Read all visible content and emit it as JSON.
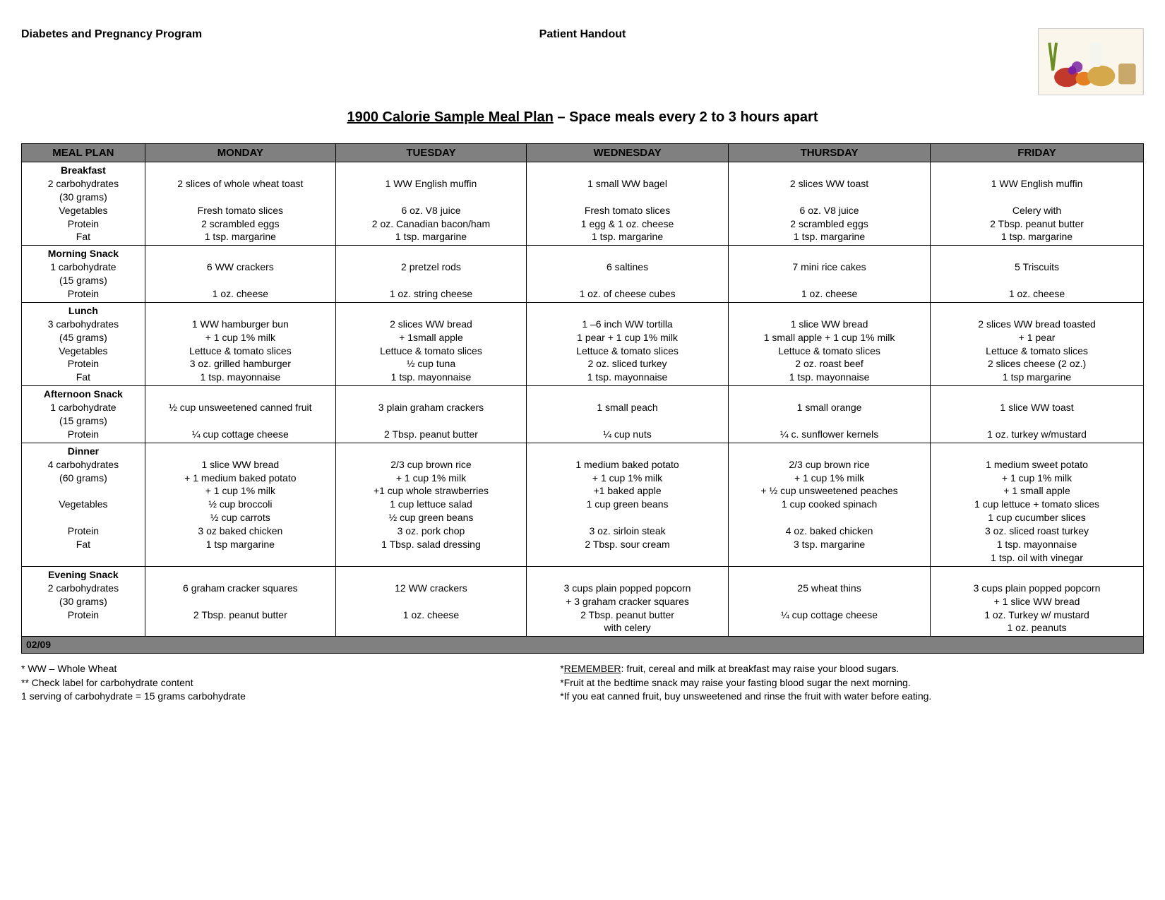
{
  "header": {
    "program": "Diabetes and Pregnancy Program",
    "doc_type": "Patient Handout"
  },
  "title": {
    "underlined": "1900 Calorie Sample Meal Plan",
    "rest": " – Space meals every 2 to 3 hours apart"
  },
  "columns": [
    "MEAL PLAN",
    "MONDAY",
    "TUESDAY",
    "WEDNESDAY",
    "THURSDAY",
    "FRIDAY"
  ],
  "meals": [
    {
      "name": "Breakfast",
      "labels": [
        "2 carbohydrates",
        "(30 grams)",
        "Vegetables",
        "Protein",
        "Fat"
      ],
      "days": [
        [
          "2 slices of whole wheat toast",
          "",
          "Fresh tomato slices",
          "2 scrambled eggs",
          "1 tsp. margarine"
        ],
        [
          "1 WW English muffin",
          "",
          "6 oz. V8 juice",
          "2 oz. Canadian bacon/ham",
          "1 tsp. margarine"
        ],
        [
          "1 small WW bagel",
          "",
          "Fresh tomato slices",
          "1 egg & 1 oz. cheese",
          "1 tsp. margarine"
        ],
        [
          "2 slices WW toast",
          "",
          "6 oz. V8 juice",
          "2 scrambled eggs",
          "1 tsp. margarine"
        ],
        [
          "1 WW English muffin",
          "",
          "Celery with",
          "2 Tbsp. peanut butter",
          "1 tsp. margarine"
        ]
      ]
    },
    {
      "name": "Morning Snack",
      "labels": [
        "1 carbohydrate",
        "(15 grams)",
        "Protein"
      ],
      "days": [
        [
          "6 WW crackers",
          "",
          "1 oz. cheese"
        ],
        [
          "2 pretzel rods",
          "",
          "1 oz. string cheese"
        ],
        [
          "6 saltines",
          "",
          "1 oz. of cheese cubes"
        ],
        [
          "7 mini rice cakes",
          "",
          "1 oz. cheese"
        ],
        [
          "5 Triscuits",
          "",
          "1 oz. cheese"
        ]
      ]
    },
    {
      "name": "Lunch",
      "labels": [
        "3 carbohydrates",
        "(45 grams)",
        "Vegetables",
        "Protein",
        "Fat"
      ],
      "days": [
        [
          "1 WW hamburger bun",
          "+ 1 cup 1% milk",
          "Lettuce & tomato slices",
          "3 oz. grilled hamburger",
          "1 tsp. mayonnaise"
        ],
        [
          "2 slices WW bread",
          "+ 1small apple",
          "Lettuce & tomato slices",
          "½ cup tuna",
          "1 tsp. mayonnaise"
        ],
        [
          "1 –6 inch WW tortilla",
          "1 pear + 1 cup 1% milk",
          "Lettuce & tomato slices",
          "2 oz. sliced turkey",
          "1 tsp. mayonnaise"
        ],
        [
          "1 slice WW bread",
          "1 small apple + 1 cup 1% milk",
          "Lettuce & tomato slices",
          "2 oz. roast beef",
          "1 tsp. mayonnaise"
        ],
        [
          "2 slices WW bread toasted",
          "+ 1 pear",
          "Lettuce & tomato slices",
          "2 slices cheese (2 oz.)",
          "1 tsp margarine"
        ]
      ]
    },
    {
      "name": "Afternoon Snack",
      "labels": [
        "1 carbohydrate",
        "(15 grams)",
        "Protein"
      ],
      "days": [
        [
          "½ cup unsweetened canned fruit",
          "",
          "¼ cup cottage cheese"
        ],
        [
          "3 plain graham crackers",
          "",
          "2 Tbsp. peanut butter"
        ],
        [
          "1 small peach",
          "",
          "¼ cup nuts"
        ],
        [
          "1 small orange",
          "",
          "¼ c. sunflower kernels"
        ],
        [
          "1 slice WW toast",
          "",
          "1 oz. turkey w/mustard"
        ]
      ]
    },
    {
      "name": "Dinner",
      "labels": [
        "4 carbohydrates",
        "(60 grams)",
        "",
        "Vegetables",
        "",
        "Protein",
        "Fat",
        ""
      ],
      "days": [
        [
          "1 slice WW bread",
          "+ 1 medium baked potato",
          "+ 1 cup 1% milk",
          "½ cup broccoli",
          "½ cup carrots",
          "3 oz baked chicken",
          "1 tsp margarine",
          ""
        ],
        [
          "2/3 cup brown rice",
          "+ 1 cup 1% milk",
          "+1 cup whole strawberries",
          "1 cup lettuce salad",
          "½ cup green beans",
          "3 oz. pork chop",
          "1 Tbsp. salad dressing",
          ""
        ],
        [
          "1 medium baked potato",
          "+ 1 cup 1% milk",
          "+1 baked apple",
          "1 cup green beans",
          "",
          "3 oz. sirloin steak",
          "2 Tbsp. sour cream",
          ""
        ],
        [
          "2/3 cup brown rice",
          "+ 1 cup 1% milk",
          "+ ½ cup unsweetened peaches",
          "1 cup cooked spinach",
          "",
          "4 oz. baked chicken",
          "3 tsp. margarine",
          ""
        ],
        [
          "1 medium sweet potato",
          "+ 1 cup 1% milk",
          "+ 1 small apple",
          "1 cup lettuce + tomato slices",
          "1 cup cucumber slices",
          "3 oz. sliced roast turkey",
          "1 tsp. mayonnaise",
          "1 tsp. oil with vinegar"
        ]
      ]
    },
    {
      "name": "Evening Snack",
      "labels": [
        "2 carbohydrates",
        "(30 grams)",
        "Protein",
        ""
      ],
      "days": [
        [
          "6 graham cracker squares",
          "",
          "2 Tbsp. peanut butter",
          ""
        ],
        [
          "12 WW crackers",
          "",
          "1 oz. cheese",
          ""
        ],
        [
          "3 cups plain popped popcorn",
          "+ 3 graham cracker squares",
          "2 Tbsp. peanut butter",
          "with celery"
        ],
        [
          "25 wheat thins",
          "",
          "¼ cup cottage cheese",
          ""
        ],
        [
          "3 cups plain popped popcorn",
          "+ 1 slice WW bread",
          "1 oz. Turkey w/ mustard",
          "1 oz. peanuts"
        ]
      ]
    }
  ],
  "footer_date": "02/09",
  "notes": {
    "left": [
      " * WW – Whole Wheat",
      "** Check label for carbohydrate content",
      "1 serving of carbohydrate = 15 grams carbohydrate"
    ],
    "right_remember_label": "REMEMBER",
    "right": [
      ":  fruit, cereal and milk at breakfast may raise your blood sugars.",
      "*Fruit at the bedtime snack may raise your fasting blood sugar the next morning.",
      "*If you eat canned fruit, buy unsweetened and rinse the fruit with water before eating."
    ]
  },
  "style": {
    "header_bg": "#808080",
    "border": "#000000",
    "page_bg": "#ffffff",
    "font": "Arial",
    "title_fontsize_pt": 15,
    "body_fontsize_pt": 10.5
  }
}
